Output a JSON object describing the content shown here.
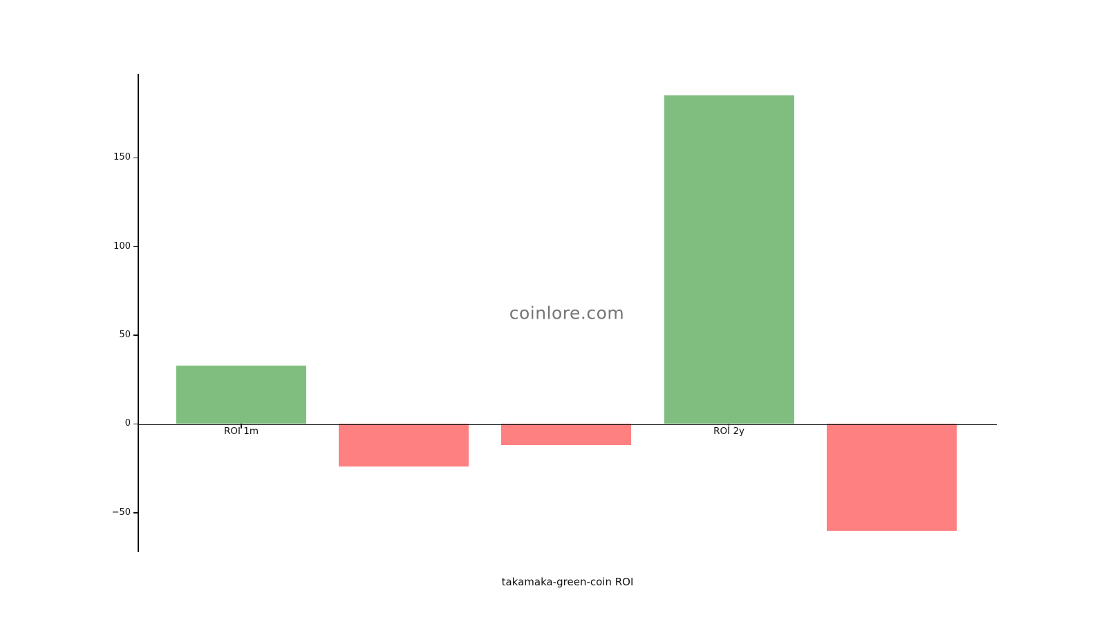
{
  "watermark_text": "coinlore.com",
  "chart_data": {
    "type": "bar",
    "title": "takamaka-green-coin ROI",
    "categories": [
      "ROI 1m",
      "",
      "",
      "ROI 2y",
      ""
    ],
    "values": [
      33,
      -24,
      -12,
      185,
      -60
    ],
    "bar_colors": [
      "#7fbe7f",
      "#ff8080",
      "#ff8080",
      "#7fbe7f",
      "#ff8080"
    ],
    "positive_color": "#7fbe7f",
    "negative_color": "#ff8080",
    "xlabel": "",
    "ylabel": "",
    "ylim": [
      -72.25,
      197.25
    ],
    "y_ticks": [
      {
        "value": 150,
        "label": "150"
      },
      {
        "value": 100,
        "label": "100"
      },
      {
        "value": 50,
        "label": "50"
      },
      {
        "value": 0,
        "label": "0"
      },
      {
        "value": -50,
        "label": "−50"
      }
    ],
    "grid": false,
    "legend": "none"
  },
  "colors": {
    "background": "#ffffff",
    "axis": "#111111",
    "tick_text": "#111111",
    "title_text": "#111111",
    "watermark_text_color": "#757575"
  }
}
